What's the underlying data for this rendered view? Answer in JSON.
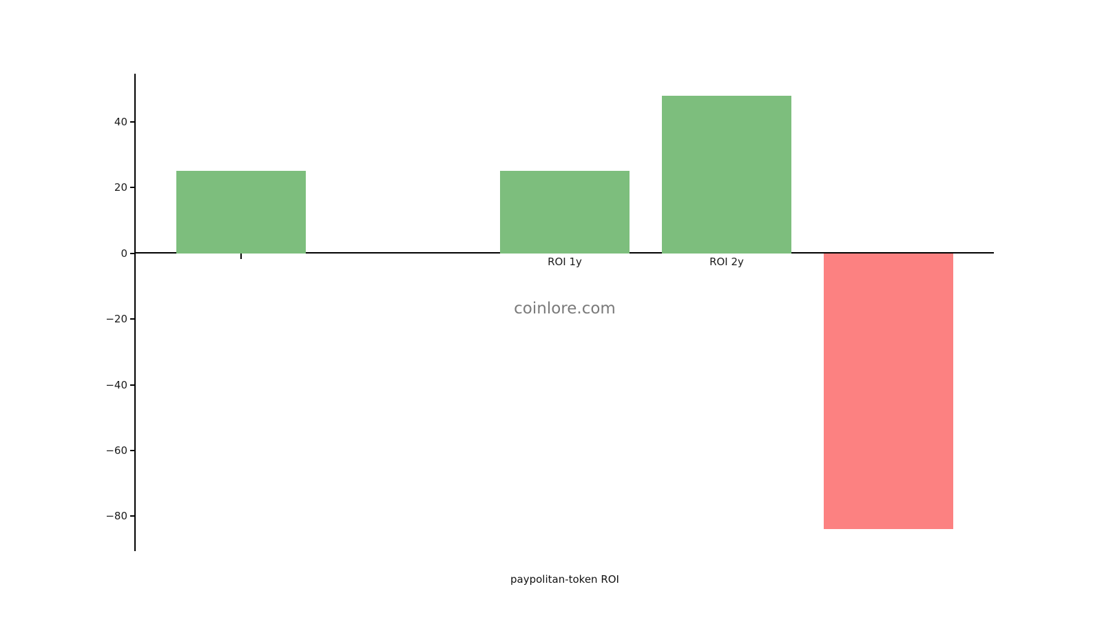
{
  "chart_data": {
    "type": "bar",
    "title": "paypolitan-token ROI",
    "watermark": "coinlore.com",
    "categories": [
      "",
      "",
      "ROI 1y",
      "ROI 2y",
      ""
    ],
    "values": [
      25,
      0,
      25,
      48,
      -84
    ],
    "xtick_marks_at_slots": [
      0
    ],
    "yticks": [
      40,
      20,
      0,
      -20,
      -40,
      -60,
      -80
    ],
    "ytick_labels": [
      "40",
      "20",
      "0",
      "−20",
      "−40",
      "−60",
      "−80"
    ],
    "ylim": [
      -90.6,
      54.6
    ],
    "legend_position": "none",
    "grid": false,
    "colors": {
      "positive_bar": "#7dbe7d",
      "negative_bar": "#fc8181",
      "axis": "#000000",
      "tick_text": "#1a1a1a",
      "watermark_text": "#7a7a7a",
      "title_text": "#111111",
      "background": "#ffffff"
    }
  }
}
